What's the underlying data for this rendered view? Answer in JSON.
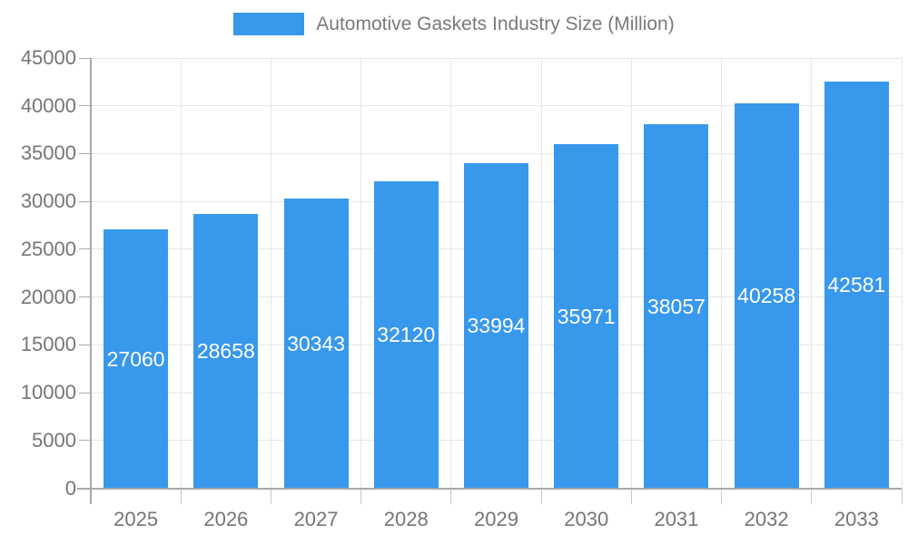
{
  "chart_data": {
    "type": "bar",
    "title": "Automotive Gaskets Industry Size (Million)",
    "categories": [
      "2025",
      "2026",
      "2027",
      "2028",
      "2029",
      "2030",
      "2031",
      "2032",
      "2033"
    ],
    "values": [
      27060,
      28658,
      30343,
      32120,
      33994,
      35971,
      38057,
      40258,
      42581
    ],
    "series": [
      {
        "name": "Automotive Gaskets Industry Size (Million)",
        "values": [
          27060,
          28658,
          30343,
          32120,
          33994,
          35971,
          38057,
          40258,
          42581
        ]
      }
    ],
    "xlabel": "",
    "ylabel": "",
    "ylim": [
      0,
      45000
    ],
    "ytick_step": 5000,
    "yticks": [
      0,
      5000,
      10000,
      15000,
      20000,
      25000,
      30000,
      35000,
      40000,
      45000
    ],
    "grid": "on",
    "legend_position": "top-center",
    "value_label_placement": "inside-center",
    "colors": {
      "bar": "#3898EC",
      "grid_line": "#E6E6E6",
      "axis_line": "#A8A8A8",
      "y_tick_line": "#ABABAB",
      "x_tick_line": "#C9C9C9",
      "axis_text": "#757575",
      "legend_text": "#7A7A7A",
      "value_label_text": "#FFFFFF",
      "background": "#FFFFFF"
    }
  }
}
